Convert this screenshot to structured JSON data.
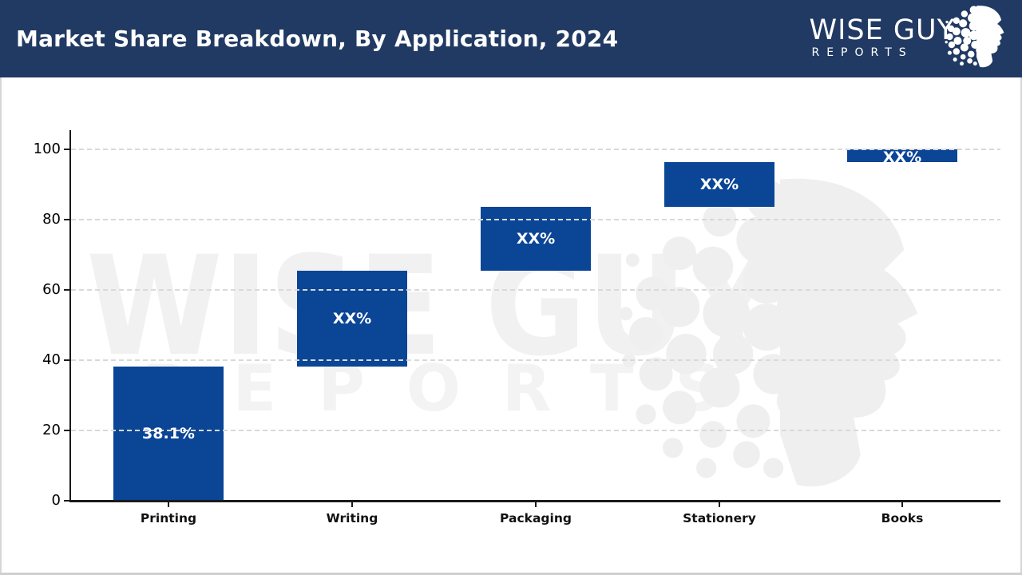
{
  "header": {
    "title": "Market Share Breakdown, By Application, 2024",
    "bg_color": "#213a63",
    "logo": {
      "line1": "WISE GUY",
      "line2": "REPORTS"
    }
  },
  "watermark": {
    "line1": "WISE GUY",
    "line2": "REPORTS"
  },
  "chart_data": {
    "type": "bar",
    "subtype": "waterfall",
    "title": "Market Share Breakdown, By Application, 2024",
    "xlabel": "",
    "ylabel": "",
    "categories": [
      "Printing",
      "Writing",
      "Packaging",
      "Stationery",
      "Books"
    ],
    "segments": [
      {
        "category": "Printing",
        "start": 0,
        "end": 38.1,
        "value": 38.1,
        "label": "38.1%"
      },
      {
        "category": "Writing",
        "start": 38.1,
        "end": 65.5,
        "value": 27.4,
        "label": "XX%"
      },
      {
        "category": "Packaging",
        "start": 65.5,
        "end": 83.6,
        "value": 18.1,
        "label": "XX%"
      },
      {
        "category": "Stationery",
        "start": 83.6,
        "end": 96.4,
        "value": 12.8,
        "label": "XX%"
      },
      {
        "category": "Books",
        "start": 96.4,
        "end": 100,
        "value": 3.6,
        "label": "XX%"
      }
    ],
    "y_ticks": [
      "0",
      "20",
      "40",
      "60",
      "80",
      "100"
    ],
    "y_tick_values": [
      0,
      20,
      40,
      60,
      80,
      100
    ],
    "ylim": [
      0,
      105.5
    ],
    "grid": "horizontal dashed, drawn over bars",
    "legend": "none",
    "colors": {
      "bar": "#0a4596",
      "bar_label": "#ffffff",
      "axis": "#1a1a1a",
      "grid": "#d9d9d9",
      "header_bg": "#213a63",
      "watermark": "#f1f1f1"
    }
  }
}
